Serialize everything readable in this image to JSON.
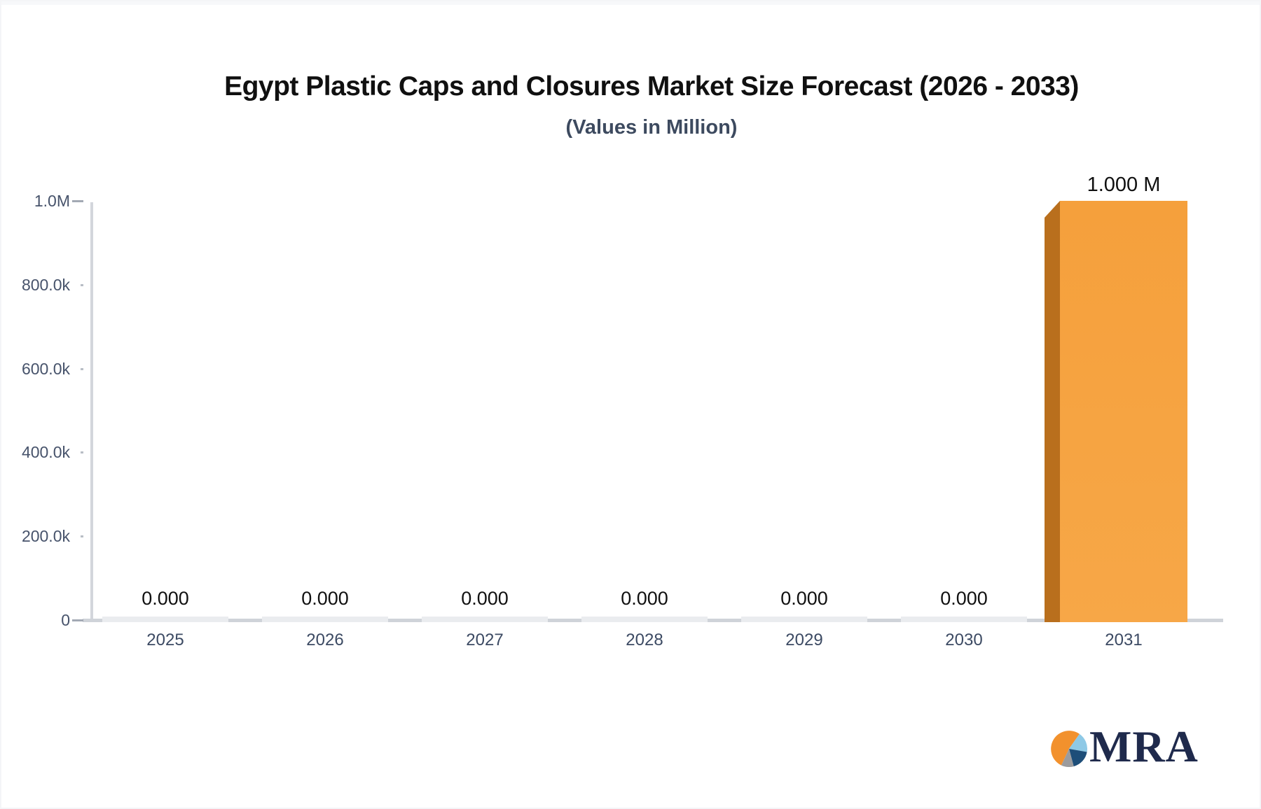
{
  "page": {
    "title": "Egypt Plastic Caps and Closures Market Size Forecast (2026 - 2033)",
    "subtitle": "(Values in Million)"
  },
  "chart_data": {
    "type": "bar",
    "title": "Egypt Plastic Caps and Closures Market Size Forecast (2026 - 2033)",
    "subtitle": "(Values in Million)",
    "categories": [
      "2025",
      "2026",
      "2027",
      "2028",
      "2029",
      "2030",
      "2031"
    ],
    "values": [
      0,
      0,
      0,
      0,
      0,
      0,
      1000000
    ],
    "value_labels": [
      "0.000",
      "0.000",
      "0.000",
      "0.000",
      "0.000",
      "0.000",
      "1.000 M"
    ],
    "xlabel": "",
    "ylabel": "",
    "ylim": [
      0,
      1000000
    ],
    "y_ticks": [
      {
        "label": "1.0M",
        "value": 1000000,
        "major": true
      },
      {
        "label": "800.0k",
        "value": 800000,
        "major": false
      },
      {
        "label": "600.0k",
        "value": 600000,
        "major": false
      },
      {
        "label": "400.0k",
        "value": 400000,
        "major": false
      },
      {
        "label": "200.0k",
        "value": 200000,
        "major": false
      },
      {
        "label": "0",
        "value": 0,
        "major": true
      }
    ],
    "grid": false,
    "legend": "none",
    "bar_color_top": "#F5A03C",
    "bar_color_bottom": "#F7A747",
    "bar_side_color": "#B96F1D",
    "zero_bar_color": "#EAECEF",
    "axis_color": "#CFD3D9",
    "label_color": "#3C4A63"
  },
  "logo": {
    "text": "MRA",
    "pie_colors": {
      "orange": "#F2912D",
      "lightblue": "#8EC9E6",
      "navy": "#1E4E79",
      "gray": "#9B9B9D"
    }
  }
}
